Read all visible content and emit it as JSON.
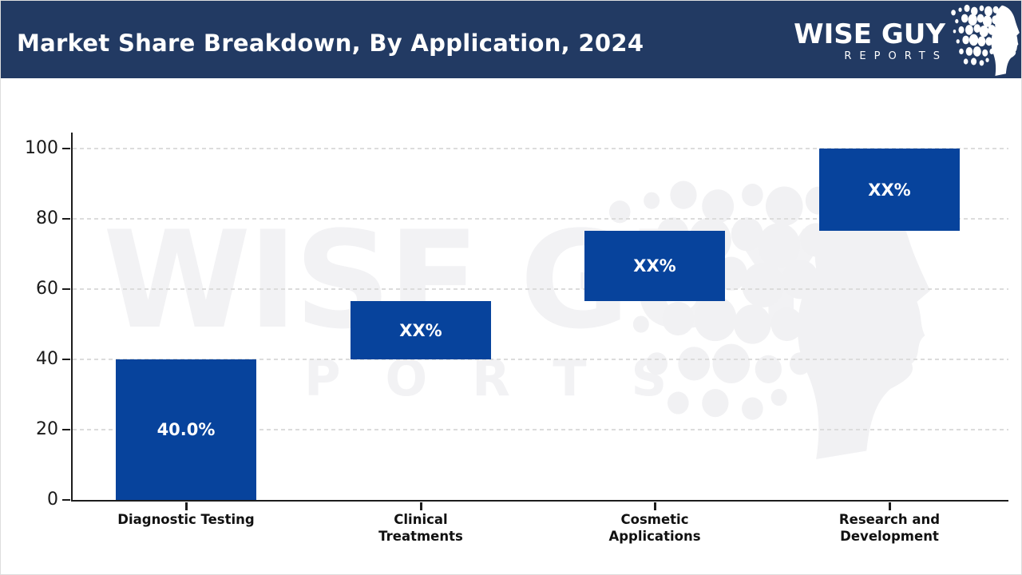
{
  "header": {
    "title": "Market Share Breakdown, By Application, 2024",
    "logo": {
      "wordmark": "WISE GUY",
      "sub": "REPORTS",
      "icon": "dotted-head-profile"
    }
  },
  "watermark": {
    "wordmark": "WISE GUY",
    "sub": "REPORTS",
    "icon": "dotted-head-profile"
  },
  "chart_data": {
    "type": "bar",
    "variant": "waterfall",
    "title": "Market Share Breakdown, By Application, 2024",
    "categories": [
      [
        "Diagnostic Testing"
      ],
      [
        "Clinical",
        "Treatments"
      ],
      [
        "Cosmetic",
        "Applications"
      ],
      [
        "Research and",
        "Development"
      ]
    ],
    "segments": [
      {
        "category": "Diagnostic Testing",
        "start": 0,
        "end": 40,
        "value": 40.0,
        "label": "40.0%"
      },
      {
        "category": "Clinical Treatments",
        "start": 40,
        "end": 56.5,
        "value": 16.5,
        "label": "XX%"
      },
      {
        "category": "Cosmetic Applications",
        "start": 56.5,
        "end": 76.5,
        "value": 20.0,
        "label": "XX%"
      },
      {
        "category": "Research and Development",
        "start": 76.5,
        "end": 100,
        "value": 23.5,
        "label": "XX%"
      }
    ],
    "yticks": [
      0,
      20,
      40,
      60,
      80,
      100
    ],
    "ylim": [
      0,
      105
    ],
    "xlabel": "",
    "ylabel": "",
    "grid": true,
    "legend": null,
    "bar_color": "#07439c",
    "bar_label_color": "#ffffff",
    "gridline_color": "#dcdcdc",
    "axis_color": "#1c1c1c",
    "tick_label_color": "#1a1a1a"
  },
  "colors": {
    "header_bg": "#223a63",
    "page_bg": "#ffffff",
    "watermark": "#f2f2f4"
  }
}
